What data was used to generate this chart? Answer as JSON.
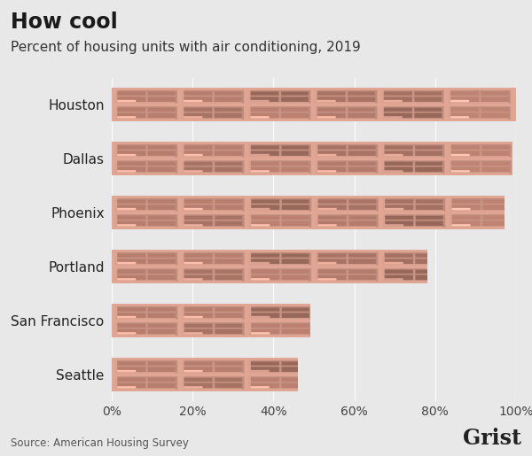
{
  "title": "How cool",
  "subtitle": "Percent of housing units with air conditioning, 2019",
  "source": "Source: American Housing Survey",
  "branding": "Grist",
  "cities": [
    "Houston",
    "Dallas",
    "Phoenix",
    "Portland",
    "San Francisco",
    "Seattle"
  ],
  "values": [
    1.0,
    0.99,
    0.97,
    0.78,
    0.49,
    0.46
  ],
  "background_color": "#e8e8e8",
  "xlim": [
    0,
    1.0
  ],
  "xtick_labels": [
    "0%",
    "20%",
    "40%",
    "60%",
    "80%",
    "100%"
  ],
  "xtick_values": [
    0,
    0.2,
    0.4,
    0.6,
    0.8,
    1.0
  ],
  "title_fontsize": 17,
  "subtitle_fontsize": 11,
  "label_fontsize": 11,
  "tick_fontsize": 10,
  "source_fontsize": 8.5,
  "branding_fontsize": 17,
  "bar_height": 0.62,
  "title_color": "#1a1a1a",
  "subtitle_color": "#333333",
  "label_color": "#222222",
  "tick_color": "#444444",
  "source_color": "#555555",
  "branding_color": "#222222",
  "base_r": 0.88,
  "base_g": 0.65,
  "base_b": 0.58,
  "wall_r": 0.8,
  "wall_g": 0.55,
  "wall_b": 0.48
}
